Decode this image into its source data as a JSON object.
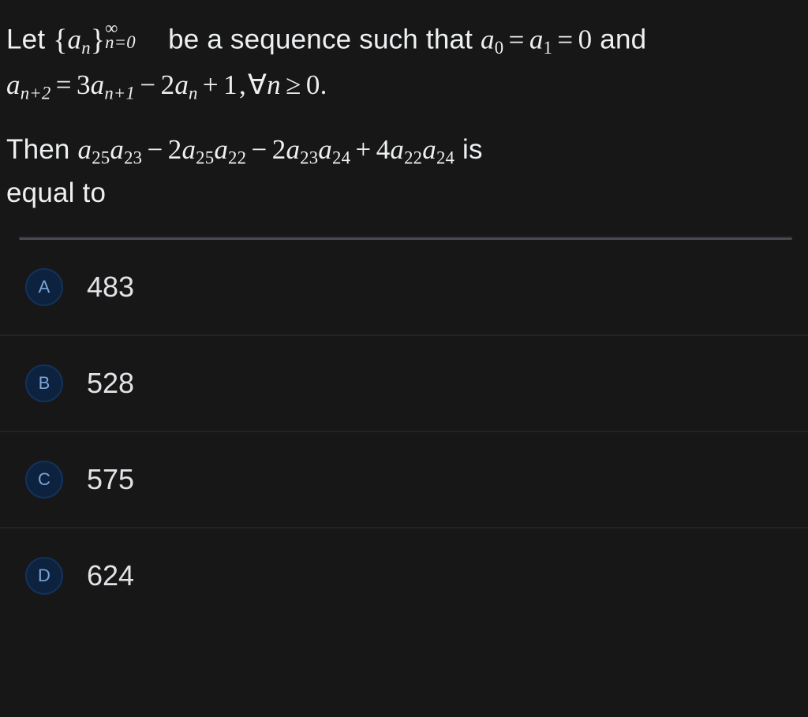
{
  "colors": {
    "background": "#171717",
    "text": "#eef0f2",
    "divider_dark": "#313338",
    "divider_light": "#4c4f55",
    "option_border": "#222326",
    "letter_border": "#12325b",
    "letter_bg": "#0d223f",
    "letter_text": "#7aa6d6",
    "option_text": "#e1e3e6"
  },
  "question": {
    "line1_pre": "Let ",
    "seq_var": "a",
    "seq_idx": "n",
    "limits_sub": "n=0",
    "limits_sup": "∞",
    "line1_mid": " be a sequence such that ",
    "a0": "0",
    "a1": "1",
    "eq_zero": "0",
    "line1_post": " and",
    "recur_lhs_idx": "n+2",
    "coef3": "3",
    "idx_np1": "n+1",
    "coef2": "2",
    "idx_n": "n",
    "plus1": "1",
    "forall": "∀",
    "geq": "≥",
    "zero": "0",
    "then": "Then ",
    "i25": "25",
    "i23": "23",
    "i22": "22",
    "i24": "24",
    "two": "2",
    "four": "4",
    "is": " is",
    "equal_to": "equal to"
  },
  "options": [
    {
      "letter": "A",
      "text": "483"
    },
    {
      "letter": "B",
      "text": "528"
    },
    {
      "letter": "C",
      "text": "575"
    },
    {
      "letter": "D",
      "text": "624"
    }
  ]
}
